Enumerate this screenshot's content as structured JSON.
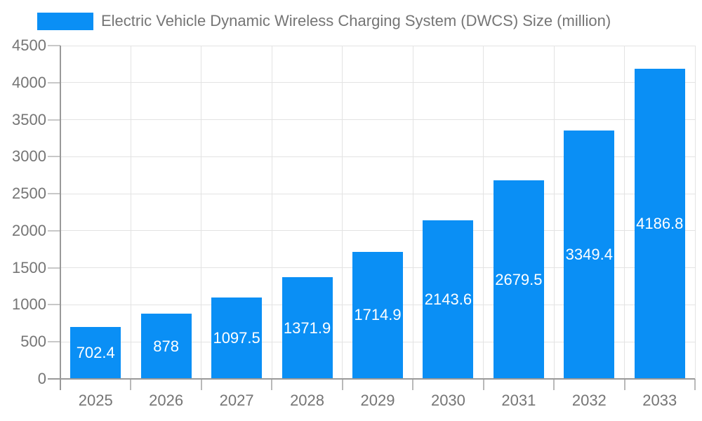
{
  "legend": {
    "swatch_color": "#0a8ff5",
    "label": "Electric Vehicle Dynamic Wireless Charging System (DWCS) Size (million)"
  },
  "chart_data": {
    "type": "bar",
    "title": "Electric Vehicle Dynamic Wireless Charging System (DWCS) Size (million)",
    "categories": [
      "2025",
      "2026",
      "2027",
      "2028",
      "2029",
      "2030",
      "2031",
      "2032",
      "2033"
    ],
    "values": [
      702.4,
      878,
      1097.5,
      1371.9,
      1714.9,
      2143.6,
      2679.5,
      3349.4,
      4186.8
    ],
    "value_labels": [
      "702.4",
      "878",
      "1097.5",
      "1371.9",
      "1714.9",
      "2143.6",
      "2679.5",
      "3349.4",
      "4186.8"
    ],
    "xlabel": "",
    "ylabel": "",
    "ylim": [
      0,
      4500
    ],
    "ytick_step": 500,
    "ytick_labels": [
      "0",
      "500",
      "1000",
      "1500",
      "2000",
      "2500",
      "3000",
      "3500",
      "4000",
      "4500"
    ],
    "grid": "on",
    "legend_position": "top-left",
    "bar_color": "#0a8ff5",
    "bar_label_color": "#ffffff",
    "axis_text_color": "#757575",
    "axis_line_color": "#999999",
    "gridline_color": "#e3e3e3"
  }
}
